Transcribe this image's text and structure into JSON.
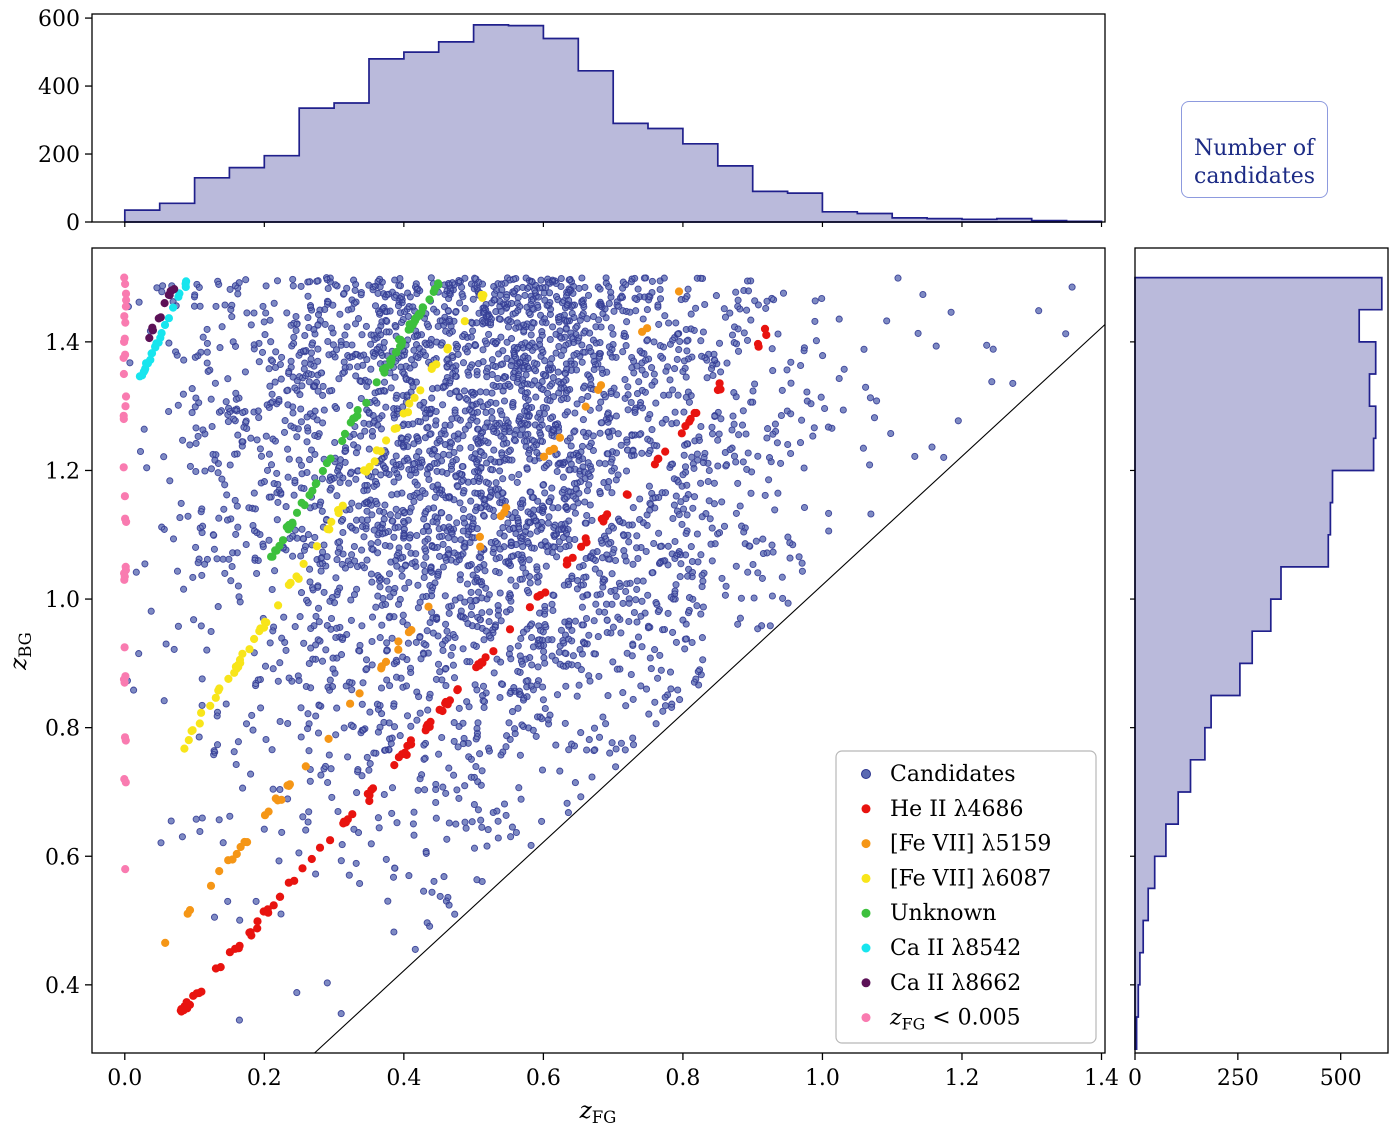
{
  "figure": {
    "annotation": {
      "text": "Number of\ncandidates",
      "text_color": "#1c2b85",
      "border_color": "#8d9ade"
    }
  },
  "chart_data": [
    {
      "id": "top_histogram",
      "type": "area",
      "subtype": "step-histogram",
      "orientation": "vertical",
      "variable": "z_FG",
      "quantity": "Number of candidates",
      "yticks": [
        0,
        200,
        400,
        600
      ],
      "xticks": [
        0.0,
        0.2,
        0.4,
        0.6,
        0.8,
        1.0,
        1.2,
        1.4
      ],
      "xlim": [
        -0.047,
        1.405
      ],
      "ylim": [
        0,
        612
      ],
      "bin_start": 0.0,
      "bin_width": 0.05,
      "counts": [
        35,
        55,
        130,
        160,
        195,
        335,
        350,
        480,
        500,
        530,
        580,
        578,
        540,
        445,
        290,
        275,
        230,
        165,
        90,
        85,
        30,
        25,
        12,
        10,
        8,
        10,
        4,
        2
      ],
      "fill_color": "#b6b6d9",
      "edge_color": "#20208c",
      "grid": false
    },
    {
      "id": "scatter",
      "type": "scatter",
      "xlabel": "z_FG",
      "ylabel": "z_BG",
      "xlabel_parts": [
        {
          "t": "z",
          "italic": true
        },
        {
          "t": "FG",
          "sub": true
        }
      ],
      "ylabel_parts": [
        {
          "t": "z",
          "italic": true
        },
        {
          "t": "BG",
          "sub": true
        }
      ],
      "xticks": [
        0.0,
        0.2,
        0.4,
        0.6,
        0.8,
        1.0,
        1.2,
        1.4
      ],
      "yticks": [
        0.4,
        0.6,
        0.8,
        1.0,
        1.2,
        1.4
      ],
      "xlim": [
        -0.047,
        1.405
      ],
      "ylim": [
        0.294,
        1.546
      ],
      "grid": false,
      "diagonal_line": {
        "slope": 1.0,
        "intercept": 0.022,
        "color": "#000000"
      },
      "gaps_along_lines": [
        {
          "slope": 1.2573,
          "intercept": 0.2573,
          "halfwidth": 0.021
        },
        {
          "slope": 1.384,
          "intercept": 0.384,
          "halfwidth": 0.012
        },
        {
          "slope": 1.6332,
          "intercept": 0.6332,
          "halfwidth": 0.01
        },
        {
          "slope": 1.79,
          "intercept": 0.689,
          "halfwidth": 0.009
        }
      ],
      "legend": {
        "position": "lower right",
        "entries": [
          "Candidates",
          "He II λ4686",
          "[Fe VII] λ5159",
          "[Fe VII] λ6087",
          "Unknown",
          "Ca II λ8542",
          "Ca II λ8662",
          "z_FG < 0.005"
        ]
      },
      "series": [
        {
          "name": "Candidates",
          "label_parts": [
            {
              "t": "Candidates"
            }
          ],
          "color": "#5a69b2",
          "edge_color": "#2a338f",
          "marker": "circle",
          "count": 3400,
          "distribution": "sampled from the two marginal histograms with z_BG > z_FG + 0.032"
        },
        {
          "name": "He II λ4686",
          "label_parts": [
            {
              "t": "He II λ4686"
            }
          ],
          "color": "#e8130f",
          "line": {
            "slope": 1.2573,
            "intercept": 0.2573
          },
          "x_range": [
            0.08,
            0.92
          ],
          "count": 110,
          "bias": 1.5
        },
        {
          "name": "[Fe VII] λ5159",
          "label_parts": [
            {
              "t": "[Fe VII] λ5159"
            }
          ],
          "color": "#f59616",
          "line": {
            "slope": 1.384,
            "intercept": 0.384
          },
          "x_range": [
            0.05,
            0.8
          ],
          "count": 46,
          "bias": 1.1
        },
        {
          "name": "[Fe VII] λ6087",
          "label_parts": [
            {
              "t": "[Fe VII] λ6087"
            }
          ],
          "color": "#f8e51a",
          "line": {
            "slope": 1.6332,
            "intercept": 0.6332
          },
          "x_range": [
            0.085,
            0.52
          ],
          "count": 62,
          "bias": 1.25
        },
        {
          "name": "Unknown",
          "label_parts": [
            {
              "t": "Unknown"
            }
          ],
          "color": "#3dc03d",
          "line": {
            "slope": 1.79,
            "intercept": 0.689
          },
          "x_range": [
            0.205,
            0.452
          ],
          "count": 66,
          "bias": 1.0
        },
        {
          "name": "Ca II λ8542",
          "label_parts": [
            {
              "t": "Ca II λ8542"
            }
          ],
          "color": "#17e5ee",
          "line": {
            "slope": 2.292,
            "intercept": 1.292
          },
          "x_range": [
            0.018,
            0.088
          ],
          "count": 24,
          "bias": 1.0
        },
        {
          "name": "Ca II λ8662",
          "label_parts": [
            {
              "t": "Ca II λ8662"
            }
          ],
          "color": "#5c1157",
          "line": {
            "slope": 2.324,
            "intercept": 1.324
          },
          "x_range": [
            0.035,
            0.075
          ],
          "count": 12,
          "bias": 1.0
        },
        {
          "name": "z_FG < 0.005",
          "label_parts": [
            {
              "t": "z",
              "italic": true
            },
            {
              "t": "FG",
              "sub": true
            },
            {
              "t": " < 0.005"
            }
          ],
          "color": "#f97bb0",
          "x_value": 0.0,
          "y_values": [
            0.58,
            0.715,
            0.72,
            0.78,
            0.785,
            0.87,
            0.875,
            0.88,
            0.925,
            1.03,
            1.035,
            1.04,
            1.045,
            1.05,
            1.12,
            1.125,
            1.16,
            1.205,
            1.28,
            1.285,
            1.3,
            1.315,
            1.35,
            1.375,
            1.38,
            1.4,
            1.405,
            1.43,
            1.44,
            1.455,
            1.465,
            1.475,
            1.49,
            1.5
          ]
        }
      ]
    },
    {
      "id": "right_histogram",
      "type": "area",
      "subtype": "step-histogram",
      "orientation": "horizontal",
      "variable": "z_BG",
      "quantity": "Number of candidates",
      "xticks": [
        0,
        250,
        500
      ],
      "yticks": [
        0.4,
        0.6,
        0.8,
        1.0,
        1.2,
        1.4
      ],
      "xlim": [
        0,
        615
      ],
      "ylim": [
        0.294,
        1.546
      ],
      "bin_start": 0.3,
      "bin_width": 0.05,
      "counts": [
        4,
        8,
        12,
        20,
        32,
        48,
        75,
        105,
        135,
        170,
        185,
        255,
        285,
        330,
        355,
        470,
        475,
        480,
        580,
        585,
        570,
        585,
        545,
        600
      ],
      "fill_color": "#b6b6d9",
      "edge_color": "#20208c",
      "grid": false
    }
  ]
}
